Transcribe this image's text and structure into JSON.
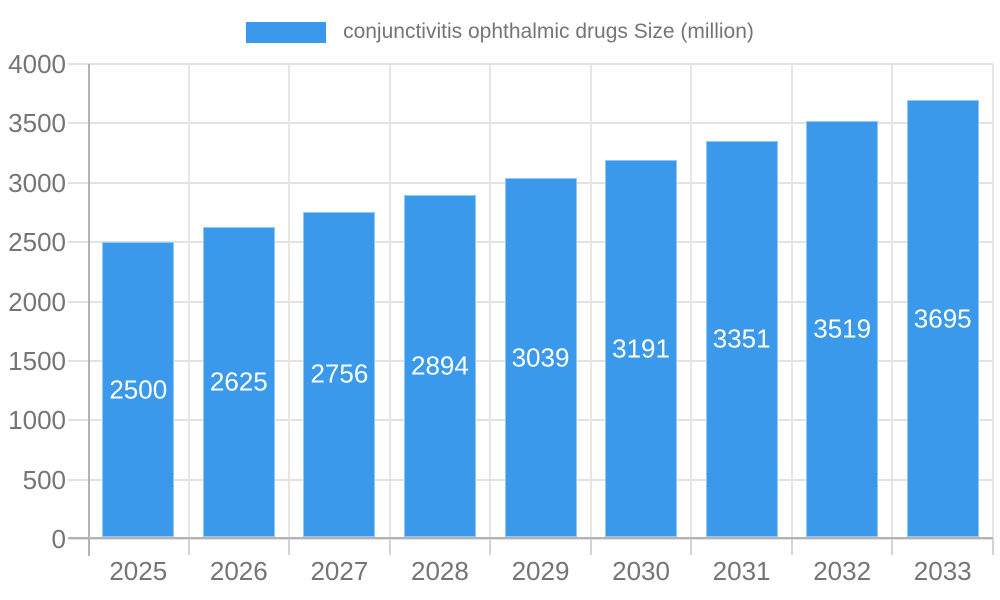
{
  "legend": {
    "label": "conjunctivitis ophthalmic drugs Size (million)"
  },
  "chart_data": {
    "type": "bar",
    "categories": [
      "2025",
      "2026",
      "2027",
      "2028",
      "2029",
      "2030",
      "2031",
      "2032",
      "2033"
    ],
    "values": [
      2500,
      2625,
      2756,
      2894,
      3039,
      3191,
      3351,
      3519,
      3695
    ],
    "value_labels": [
      "2500",
      "2625",
      "2756",
      "2894",
      "3039",
      "3191",
      "3351",
      "3519",
      "3695"
    ],
    "title": "",
    "xlabel": "",
    "ylabel": "",
    "ylim": [
      0,
      4000
    ],
    "yticks": [
      0,
      500,
      1000,
      1500,
      2000,
      2500,
      3000,
      3500,
      4000
    ],
    "ytick_labels": [
      "0",
      "500",
      "1000",
      "1500",
      "2000",
      "2500",
      "3000",
      "3500",
      "4000"
    ],
    "grid": true,
    "legend_position": "top",
    "colors": {
      "bar": "#3B99EC",
      "bar_value_text": "#FFFFFF",
      "axis_text": "#757575",
      "gridline": "#E2E2E2",
      "axis_line": "#B3B3B3"
    }
  }
}
